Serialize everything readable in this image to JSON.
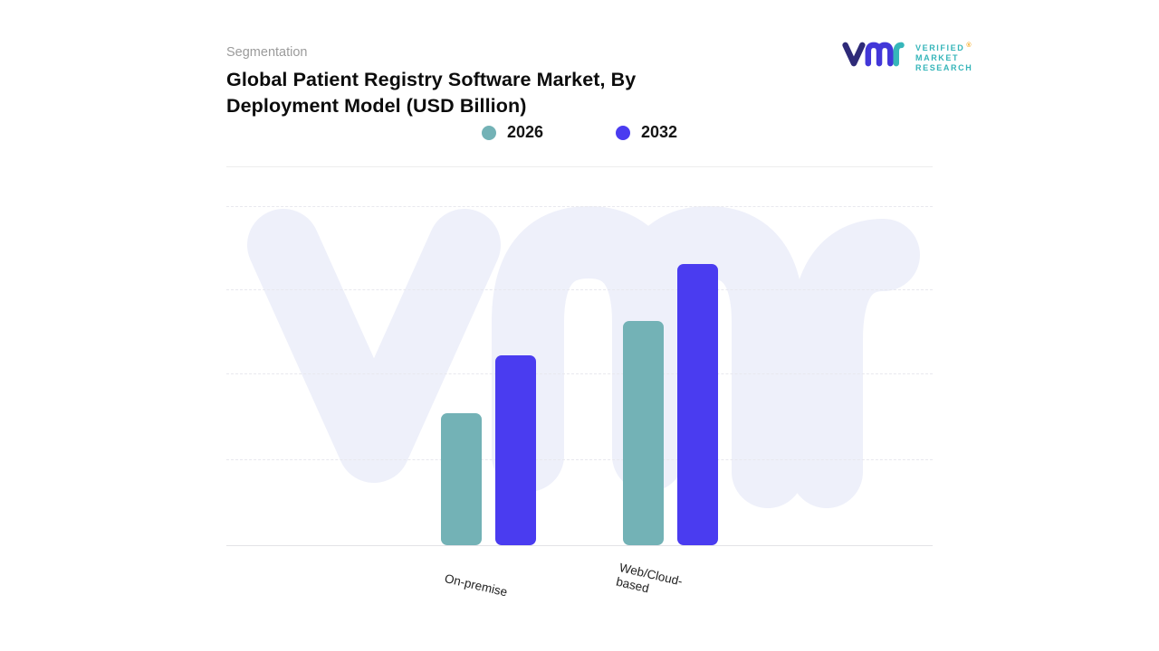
{
  "header": {
    "eyebrow": "Segmentation",
    "title_line1": "Global Patient Registry Software Market, By",
    "title_line2": "Deployment Model (USD Billion)"
  },
  "logo": {
    "brand_line1": "VERIFIED",
    "brand_line2": "MARKET",
    "brand_line3": "RESEARCH",
    "registered_mark": "®",
    "teal": "#35b5b9",
    "indigo": "#3f35d8",
    "orange": "#f5a81c"
  },
  "chart_data": {
    "type": "bar",
    "title": "Global Patient Registry Software Market, By Deployment Model (USD Billion)",
    "categories": [
      "On-premise",
      "Web/Cloud-based"
    ],
    "series": [
      {
        "name": "2026",
        "color": "#73b2b6",
        "values": [
          39,
          66
        ]
      },
      {
        "name": "2032",
        "color": "#4a3cf0",
        "values": [
          56,
          83
        ]
      }
    ],
    "ylim": [
      0,
      100
    ],
    "values_estimated": true,
    "xlabel": "",
    "ylabel": "",
    "grid": "horizontal dashed",
    "legend_position": "top-center",
    "watermark": "vmr",
    "watermark_color": "#eef0fa",
    "background": "#ffffff"
  }
}
